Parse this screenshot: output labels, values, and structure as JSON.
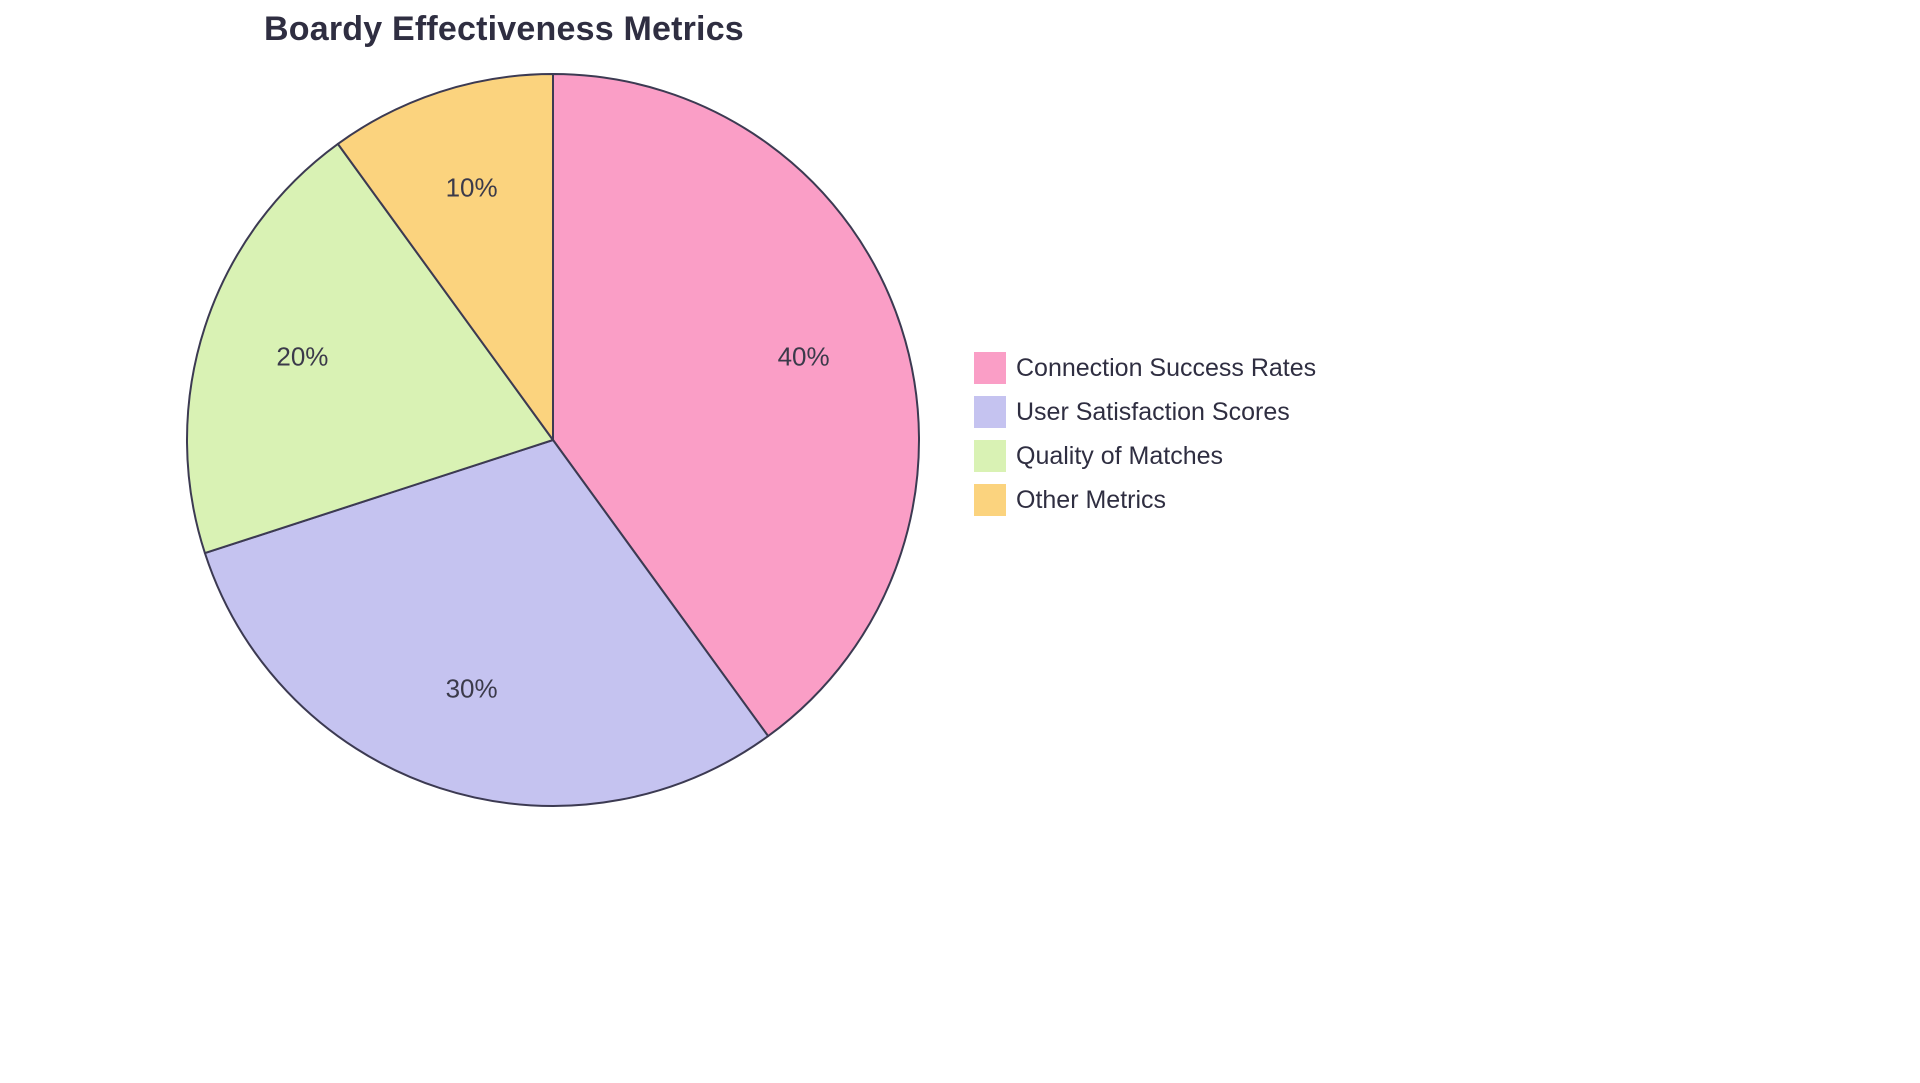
{
  "chart_data": {
    "type": "pie",
    "title": "Boardy Effectiveness Metrics",
    "categories": [
      "Connection Success Rates",
      "User Satisfaction Scores",
      "Quality of Matches",
      "Other Metrics"
    ],
    "values": [
      40,
      30,
      20,
      10
    ],
    "labels": [
      "40%",
      "30%",
      "20%",
      "10%"
    ],
    "colors": [
      "#FA9EC6",
      "#C5C3F0",
      "#D9F2B4",
      "#FBD37E"
    ],
    "stroke_color": "#3c3a52",
    "start_angle_deg": 0,
    "direction": "clockwise",
    "legend_position": "right",
    "background": "#ffffff"
  }
}
